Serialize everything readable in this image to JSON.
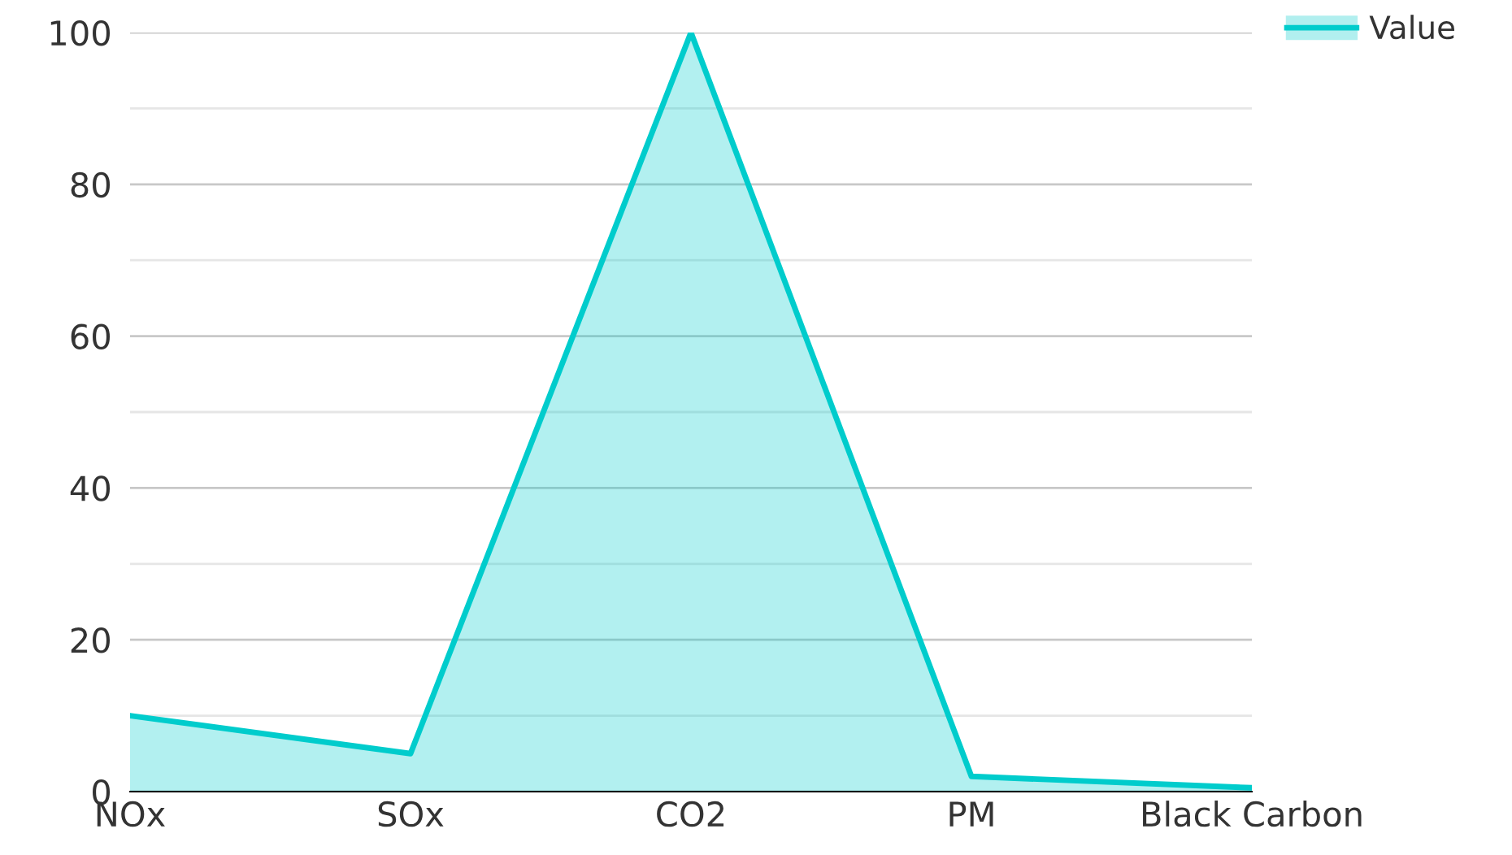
{
  "chart_data": {
    "type": "area",
    "categories": [
      "NOx",
      "SOx",
      "CO2",
      "PM",
      "Black Carbon"
    ],
    "series": [
      {
        "name": "Value",
        "color": "#00cccc",
        "values": [
          10,
          5,
          100,
          2,
          0.5
        ]
      }
    ],
    "ylim": [
      0,
      100
    ],
    "yticks": [
      0,
      {
        "value": 10,
        "label": null
      },
      20,
      {
        "value": 30,
        "label": null
      },
      40,
      {
        "value": 50,
        "label": null
      },
      60,
      {
        "value": 70,
        "label": null
      },
      80,
      {
        "value": 90,
        "label": null
      },
      100
    ],
    "grid": "y",
    "legend": "top right",
    "marker": "none",
    "line_style": "solid"
  }
}
